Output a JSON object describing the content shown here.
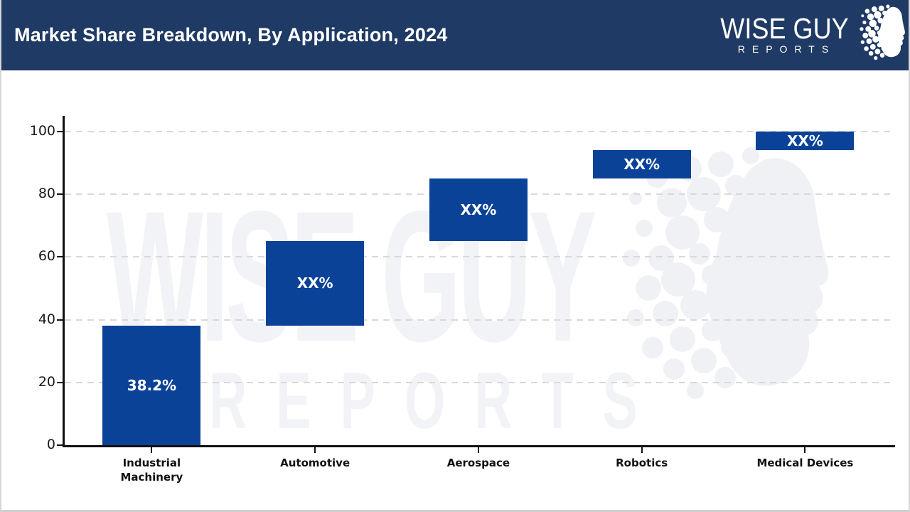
{
  "header": {
    "title": "Market Share Breakdown, By Application, 2024"
  },
  "logo": {
    "line1": "WISE GUY",
    "line2": "REPORTS",
    "head_icon": "dotted-face-profile"
  },
  "watermark": {
    "line1": "WISE GUY",
    "line2": "REPORTS",
    "head_icon": "dotted-face-profile"
  },
  "colors": {
    "header_bg": "#1F3A64",
    "bar": "#0A4298",
    "bar_label": "#ffffff",
    "grid": "#d9d9d9",
    "axis": "#111111"
  },
  "chart_data": {
    "type": "bar",
    "subtype": "waterfall-floating-bars",
    "title": "Market Share Breakdown, By Application, 2024",
    "categories": [
      "Industrial Machinery",
      "Automotive",
      "Aerospace",
      "Robotics",
      "Medical Devices"
    ],
    "bars": [
      {
        "category": "Industrial Machinery",
        "start": 0,
        "end": 38.2,
        "label": "38.2%"
      },
      {
        "category": "Automotive",
        "start": 38.2,
        "end": 65,
        "label": "XX%"
      },
      {
        "category": "Aerospace",
        "start": 65,
        "end": 85,
        "label": "XX%"
      },
      {
        "category": "Robotics",
        "start": 85,
        "end": 94,
        "label": "XX%"
      },
      {
        "category": "Medical Devices",
        "start": 94,
        "end": 100,
        "label": "XX%"
      }
    ],
    "yticks": [
      0,
      20,
      40,
      60,
      80,
      100
    ],
    "ylim": [
      0,
      105
    ],
    "xlabel": "",
    "ylabel": "",
    "grid": "dashed-horizontal",
    "legend": "none"
  }
}
